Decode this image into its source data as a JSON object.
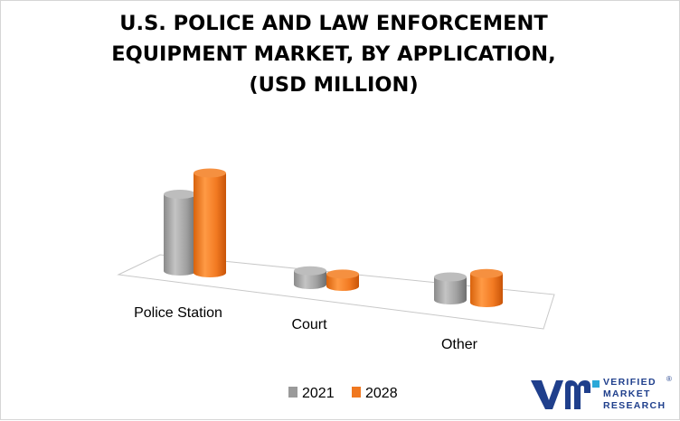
{
  "chart_data": {
    "type": "bar",
    "title_lines": [
      "U.S.  POLICE AND LAW ENFORCEMENT",
      "EQUIPMENT MARKET, BY APPLICATION,",
      "(USD MILLION)"
    ],
    "categories": [
      "Police Station",
      "Court",
      "Other"
    ],
    "series": [
      {
        "name": "2021",
        "values": [
          100,
          18,
          30
        ]
      },
      {
        "name": "2028",
        "values": [
          130,
          16,
          38
        ]
      }
    ],
    "ylim": [
      0,
      140
    ],
    "grid": false,
    "legend_position": "bottom-center",
    "series_colors": [
      "#9a9a9a",
      "#f07820"
    ]
  },
  "logo": {
    "line1": "VERIFIED",
    "line2": "MARKET",
    "line3": "RESEARCH",
    "mark": "®",
    "brand_color": "#1f3f8c",
    "accent_color": "#2aa8d8",
    "icon": "vmr-logo-icon"
  }
}
